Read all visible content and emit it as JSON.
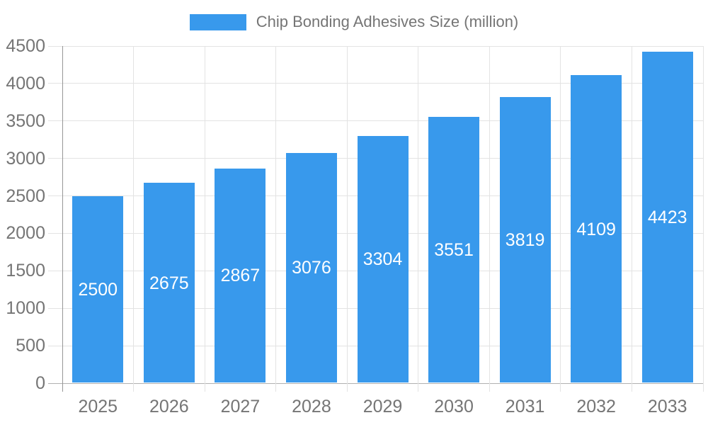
{
  "legend": {
    "label": "Chip Bonding Adhesives Size (million)"
  },
  "colors": {
    "bar": "#3899EC",
    "value_label": "#ffffff",
    "axis_text": "#757575",
    "gridline": "#e3e3e3",
    "zero_line": "#b0b0b0",
    "axis_line": "#969696",
    "background": "#ffffff"
  },
  "chart_data": {
    "type": "bar",
    "title": "Chip Bonding Adhesives Size (million)",
    "series": [
      {
        "name": "Chip Bonding Adhesives Size (million)",
        "values": [
          2500,
          2675,
          2867,
          3076,
          3304,
          3551,
          3819,
          4109,
          4423
        ]
      }
    ],
    "categories": [
      "2025",
      "2026",
      "2027",
      "2028",
      "2029",
      "2030",
      "2031",
      "2032",
      "2033"
    ],
    "xlabel": "",
    "ylabel": "",
    "ylim": [
      0,
      4500
    ],
    "ytick_interval": 500,
    "ytick_labels": [
      "0",
      "500",
      "1000",
      "1500",
      "2000",
      "2500",
      "3000",
      "3500",
      "4000",
      "4500"
    ],
    "grid": true,
    "legend_position": "top-center",
    "value_labels": "inside-middle-white"
  }
}
